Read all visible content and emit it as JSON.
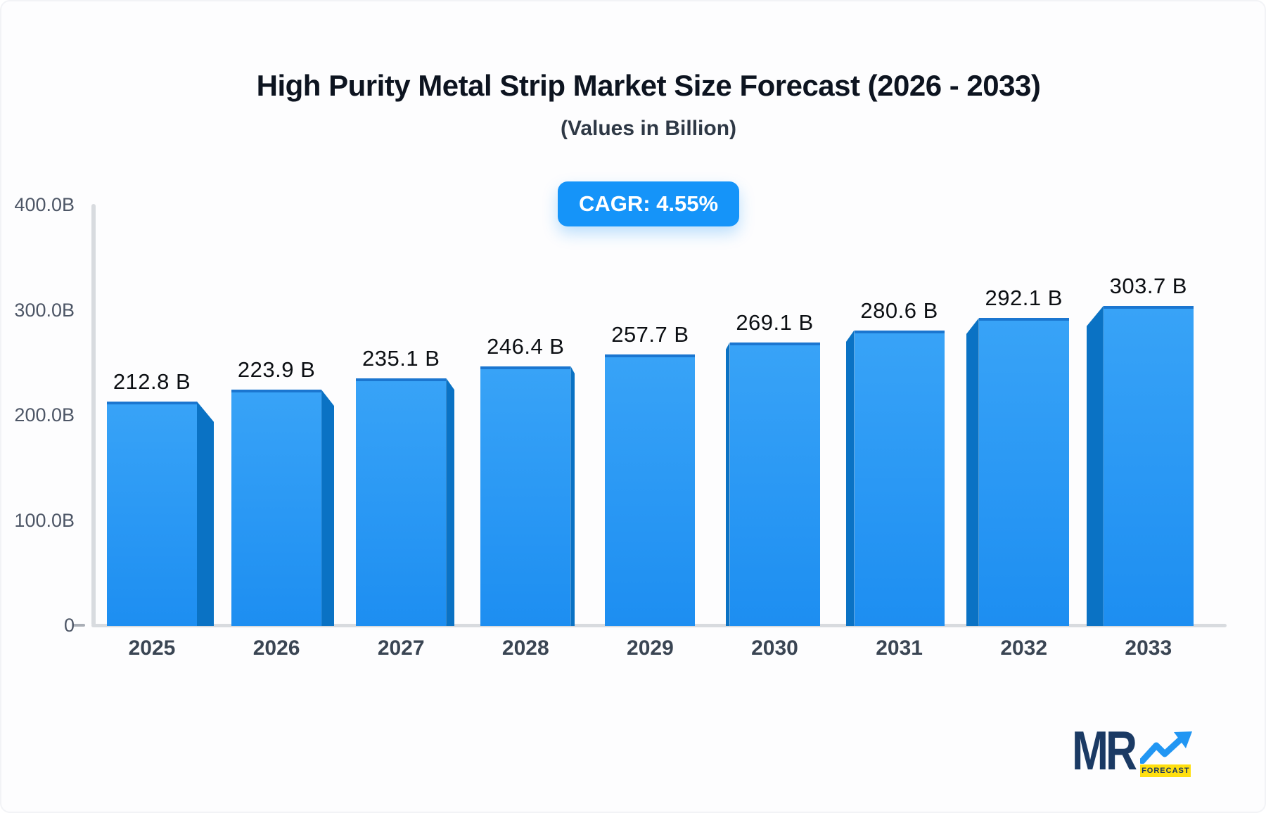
{
  "title": "High Purity Metal Strip Market Size Forecast (2026 - 2033)",
  "subtitle": "(Values in Billion)",
  "cagr_badge": "CAGR: 4.55%",
  "chart_data": {
    "type": "bar",
    "title": "High Purity Metal Strip Market Size Forecast (2026 - 2033)",
    "subtitle": "(Values in Billion)",
    "cagr": "4.55%",
    "unit": "Billion",
    "categories": [
      "2025",
      "2026",
      "2027",
      "2028",
      "2029",
      "2030",
      "2031",
      "2032",
      "2033"
    ],
    "values": [
      212.8,
      223.9,
      235.1,
      246.4,
      257.7,
      269.1,
      280.6,
      292.1,
      303.7
    ],
    "bar_labels": [
      "212.8 B",
      "223.9 B",
      "235.1 B",
      "246.4 B",
      "257.7 B",
      "269.1 B",
      "280.6 B",
      "292.1 B",
      "303.7 B"
    ],
    "y_ticks": [
      {
        "label": "400.0B",
        "value": 400
      },
      {
        "label": "300.0B",
        "value": 300
      },
      {
        "label": "200.0B",
        "value": 200
      },
      {
        "label": "100.0B",
        "value": 100
      },
      {
        "label": "0",
        "value": 0
      }
    ],
    "ylim": [
      0,
      400
    ],
    "grid": false,
    "legend": false,
    "effect": "3d-perspective-toward-center",
    "style": {
      "bar_top_color": "#38a3f7",
      "bar_bottom_color": "#1d8ef1",
      "bar_edge_color": "#1b76d0",
      "bar_side_color": "#0a72c4",
      "axis_color": "#d8dbdf",
      "badge_color": "#1594f9"
    }
  },
  "logo": {
    "mr": "MR",
    "forecast": "FORECAST",
    "navy": "#1b3a64",
    "yellow": "#ffdf10",
    "arrow_blue": "#2196f3"
  }
}
